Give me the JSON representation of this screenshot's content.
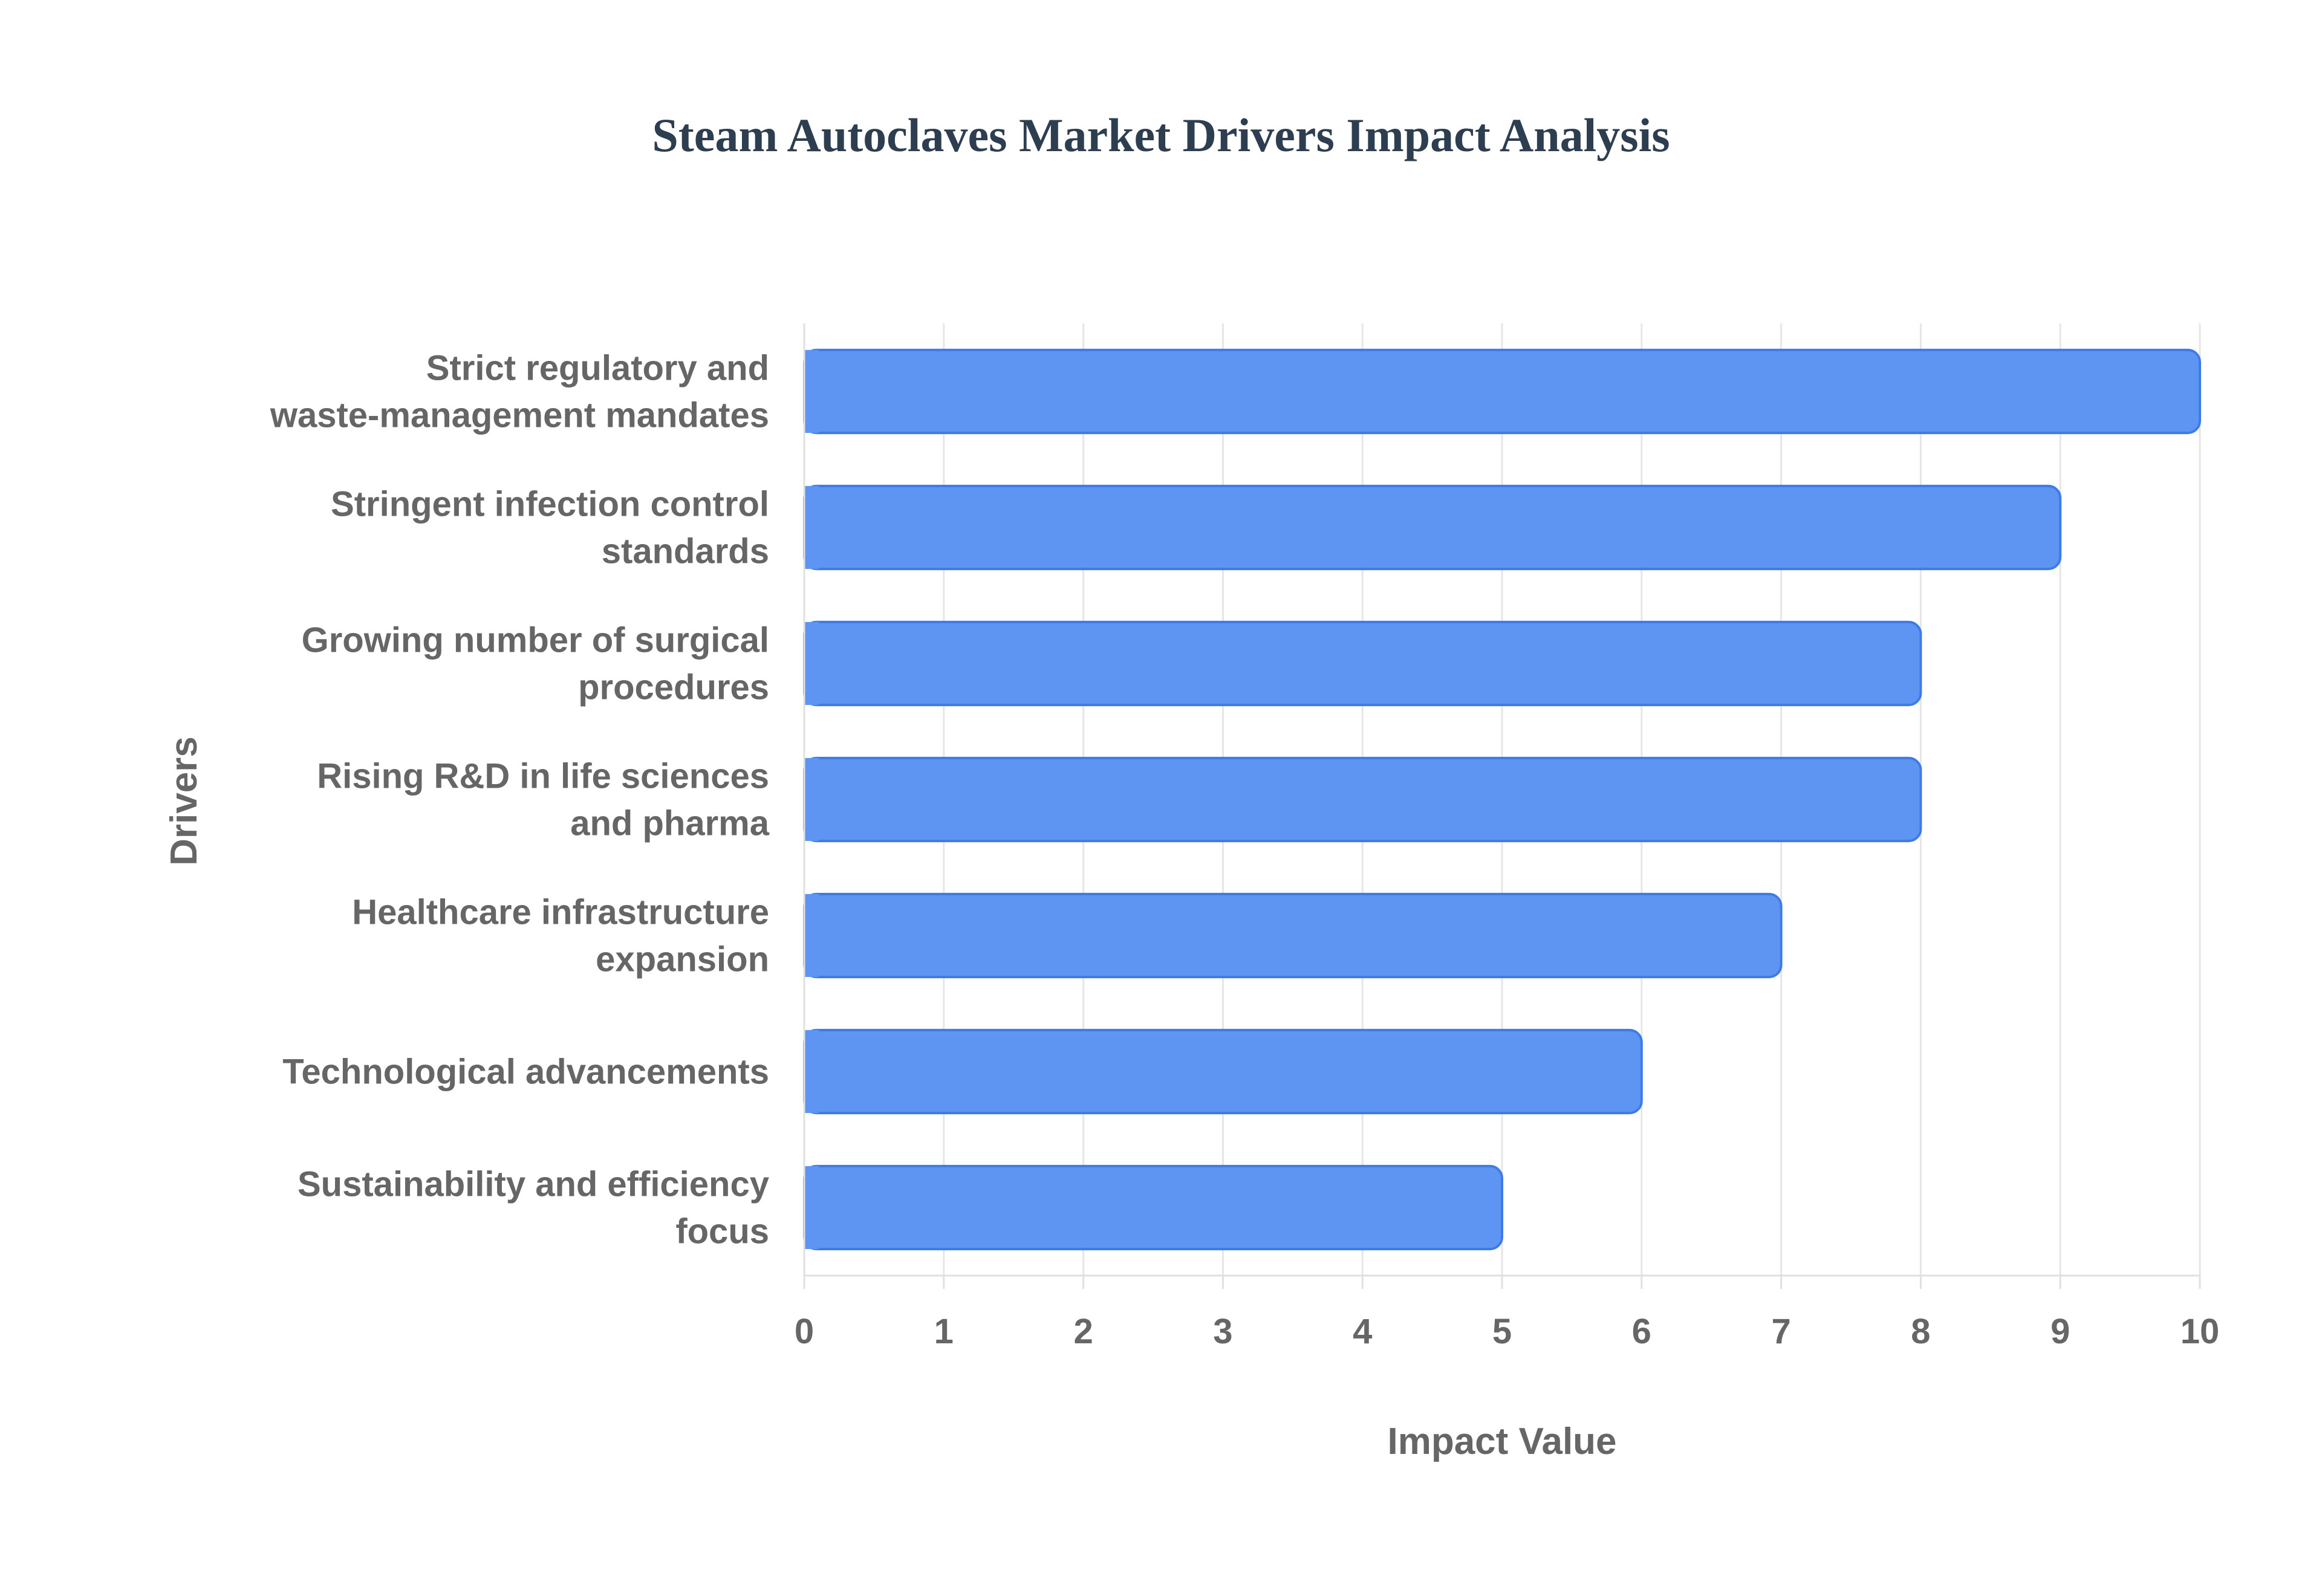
{
  "chart_data": {
    "type": "bar",
    "orientation": "horizontal",
    "title": "Steam Autoclaves Market Drivers Impact Analysis",
    "xlabel": "Impact Value",
    "ylabel": "Drivers",
    "xlim": [
      0,
      10
    ],
    "x_ticks": [
      "0",
      "1",
      "2",
      "3",
      "4",
      "5",
      "6",
      "7",
      "8",
      "9",
      "10"
    ],
    "grid": true,
    "legend": "none",
    "bar_color": "#5f95f2",
    "bar_border_color": "#3f7be8",
    "categories": [
      [
        "Strict regulatory and",
        "waste-management mandates"
      ],
      [
        "Stringent infection control",
        "standards"
      ],
      [
        "Growing number of surgical",
        "procedures"
      ],
      [
        "Rising R&D in life sciences",
        "and pharma"
      ],
      [
        "Healthcare infrastructure",
        "expansion"
      ],
      [
        "Technological advancements"
      ],
      [
        "Sustainability and efficiency",
        "focus"
      ]
    ],
    "values": [
      10,
      9,
      8,
      8,
      7,
      6,
      5
    ]
  }
}
